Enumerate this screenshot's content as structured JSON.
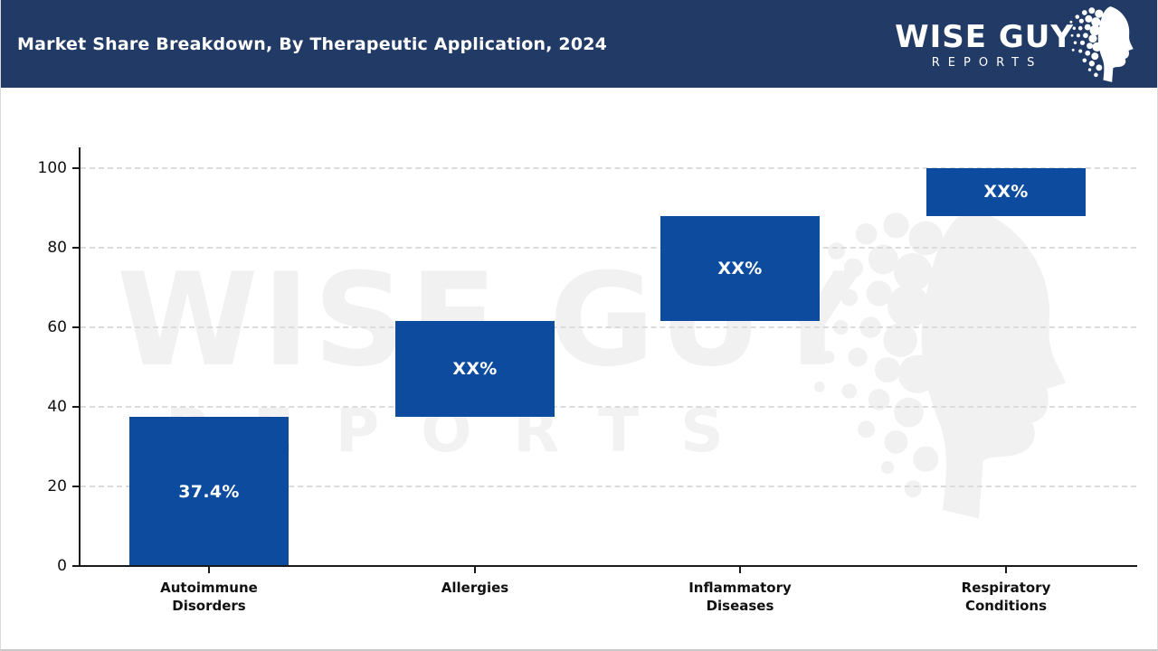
{
  "header": {
    "title": "Market Share Breakdown, By Therapeutic Application, 2024",
    "logo": {
      "line1": "WISE GUY",
      "line2": "REPORTS"
    }
  },
  "watermark": {
    "line1": "WISE GUY",
    "line2": "REPORTS"
  },
  "chart_data": {
    "type": "bar",
    "variant": "waterfall",
    "title": "Market Share Breakdown, By Therapeutic Application, 2024",
    "categories": [
      "Autoimmune Disorders",
      "Allergies",
      "Inflammatory Diseases",
      "Respiratory Conditions"
    ],
    "category_lines": [
      [
        "Autoimmune",
        "Disorders"
      ],
      [
        "Allergies"
      ],
      [
        "Inflammatory",
        "Diseases"
      ],
      [
        "Respiratory",
        "Conditions"
      ]
    ],
    "segments": [
      {
        "category": "Autoimmune Disorders",
        "start": 0,
        "end": 37.4,
        "label": "37.4%"
      },
      {
        "category": "Allergies",
        "start": 37.4,
        "end": 61.5,
        "label": "XX%"
      },
      {
        "category": "Inflammatory Diseases",
        "start": 61.5,
        "end": 88,
        "label": "XX%"
      },
      {
        "category": "Respiratory Conditions",
        "start": 88,
        "end": 100,
        "label": "XX%"
      }
    ],
    "ylim": [
      0,
      100
    ],
    "yticks": [
      0,
      20,
      40,
      60,
      80,
      100
    ],
    "xlabel": "",
    "ylabel": "",
    "grid": "horizontal-dashed",
    "legend": "none",
    "bar_color": "#0c4b9e",
    "bar_label_color": "#ffffff",
    "header_bg": "#213a66",
    "gridline_color": "#dcdcdc",
    "axis_color": "#1a1a1a"
  }
}
